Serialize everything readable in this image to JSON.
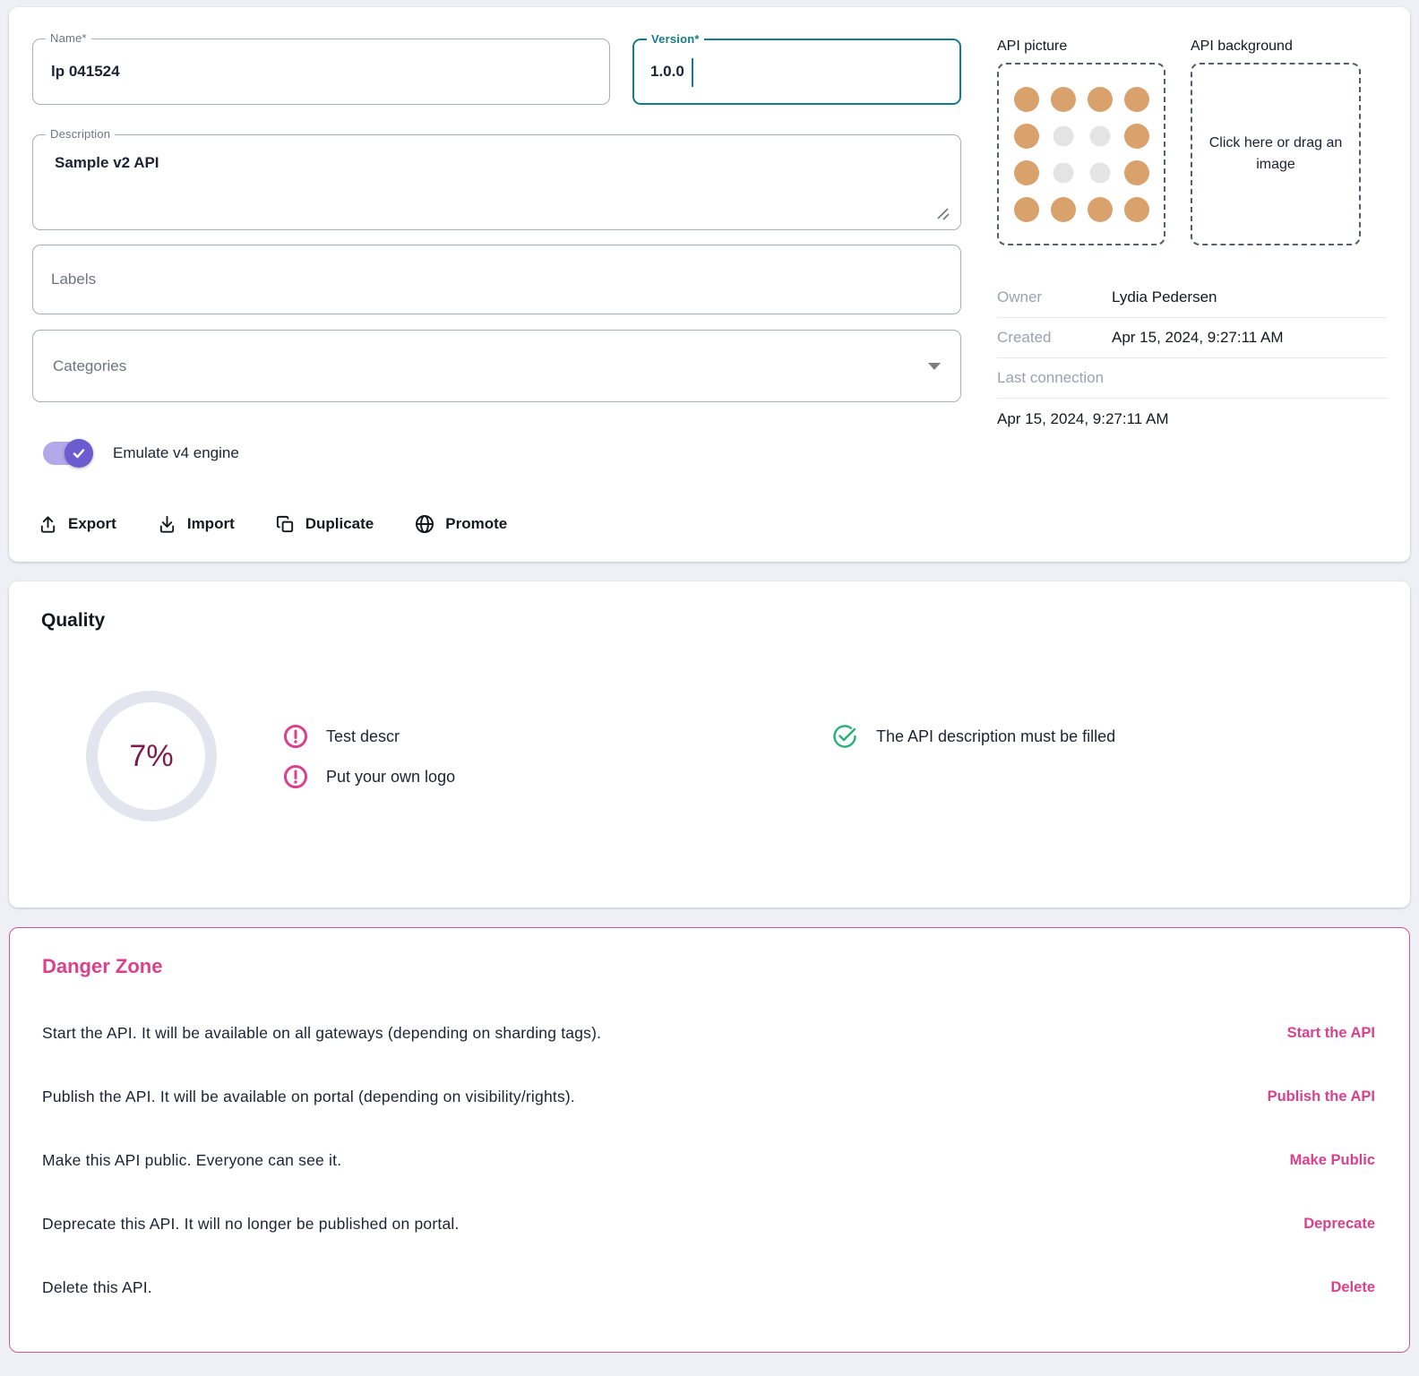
{
  "colors": {
    "page_bg": "#eef0f6",
    "teal": "#147d85",
    "pink": "#d9418c",
    "purple": "#6d5bd0",
    "purple_track": "#b3a8ea",
    "maroon": "#7d1b4d",
    "green": "#25b272",
    "dot_tan": "#d9a16c",
    "dot_gray": "#e4e4e4"
  },
  "form": {
    "name": {
      "label": "Name*",
      "value": "lp 041524"
    },
    "version": {
      "label": "Version*",
      "value": "1.0.0"
    },
    "description": {
      "label": "Description",
      "value": "Sample v2 API"
    },
    "labels": {
      "placeholder": "Labels"
    },
    "categories": {
      "placeholder": "Categories"
    },
    "emulate_toggle": {
      "label": "Emulate v4 engine",
      "checked": true
    }
  },
  "actions": {
    "export": "Export",
    "import": "Import",
    "duplicate": "Duplicate",
    "promote": "Promote"
  },
  "media": {
    "picture_label": "API picture",
    "background_label": "API background",
    "background_placeholder": "Click here or drag an image",
    "avatar_pattern": [
      "t",
      "t",
      "t",
      "t",
      "t",
      "g",
      "g",
      "t",
      "t",
      "g",
      "g",
      "t",
      "t",
      "t",
      "t",
      "t"
    ]
  },
  "meta": {
    "owner_label": "Owner",
    "owner_value": "Lydia Pedersen",
    "created_label": "Created",
    "created_value": "Apr 15, 2024, 9:27:11 AM",
    "last_connection_label": "Last connection",
    "last_connection_value": "Apr 15, 2024, 9:27:11 AM"
  },
  "quality": {
    "title": "Quality",
    "score": "7%",
    "issues": [
      {
        "text": "Test descr"
      },
      {
        "text": "Put your own logo"
      }
    ],
    "passed": [
      {
        "text": "The API description must be filled"
      }
    ]
  },
  "danger": {
    "title": "Danger Zone",
    "rows": [
      {
        "text": "Start the API. It will be available on all gateways (depending on sharding tags).",
        "action": "Start the API"
      },
      {
        "text": "Publish the API. It will be available on portal (depending on visibility/rights).",
        "action": "Publish the API"
      },
      {
        "text": "Make this API public. Everyone can see it.",
        "action": "Make Public"
      },
      {
        "text": "Deprecate this API. It will no longer be published on portal.",
        "action": "Deprecate"
      },
      {
        "text": "Delete this API.",
        "action": "Delete"
      }
    ]
  }
}
